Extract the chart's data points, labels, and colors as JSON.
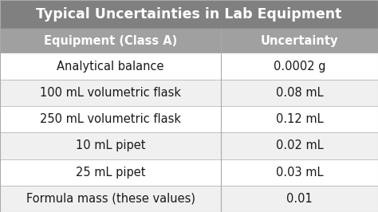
{
  "title": "Typical Uncertainties in Lab Equipment",
  "col_headers": [
    "Equipment (Class A)",
    "Uncertainty"
  ],
  "rows": [
    [
      "Analytical balance",
      "0.0002 g"
    ],
    [
      "100 mL volumetric flask",
      "0.08 mL"
    ],
    [
      "250 mL volumetric flask",
      "0.12 mL"
    ],
    [
      "10 mL pipet",
      "0.02 mL"
    ],
    [
      "25 mL pipet",
      "0.03 mL"
    ],
    [
      "Formula mass (these values)",
      "0.01"
    ]
  ],
  "title_bg": "#808080",
  "header_bg": "#a0a0a0",
  "row_bg_odd": "#f0f0f0",
  "row_bg_even": "#ffffff",
  "title_color": "#ffffff",
  "header_color": "#ffffff",
  "row_text_color": "#1a1a1a",
  "divider_color": "#aaaaaa",
  "title_fontsize": 12.5,
  "header_fontsize": 10.5,
  "row_fontsize": 10.5,
  "fig_bg": "#ffffff",
  "col_split": 0.585
}
